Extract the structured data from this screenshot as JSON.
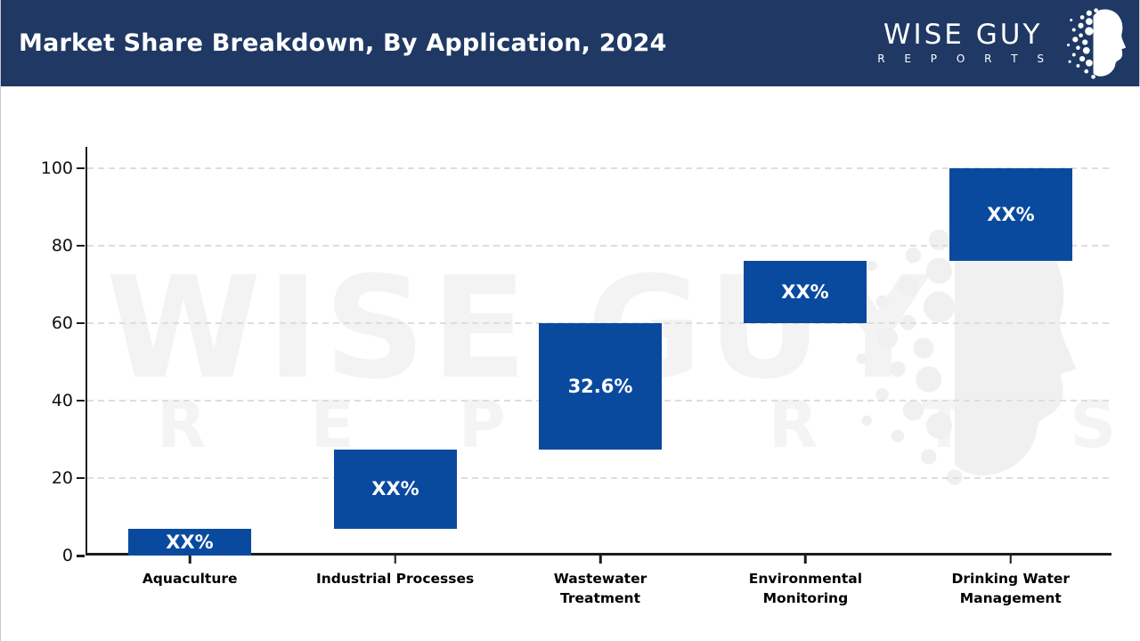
{
  "header": {
    "title": "Market Share Breakdown, By Application, 2024",
    "bg_color": "#1f3864",
    "text_color": "#ffffff",
    "logo": {
      "line1": "WISE GUY",
      "line2": "R E P O R T S"
    }
  },
  "watermark": {
    "line1": "WISE GUY",
    "line2": "R E P O R T S"
  },
  "chart_data": {
    "type": "bar",
    "subtype": "waterfall-floating-bars",
    "title": "Market Share Breakdown, By Application, 2024",
    "categories": [
      "Aquaculture",
      "Industrial Processes",
      "Wastewater Treatment",
      "Environmental Monitoring",
      "Drinking Water Management"
    ],
    "segments": [
      {
        "category": "Aquaculture",
        "start": 0,
        "end": 7,
        "value_label": "XX%"
      },
      {
        "category": "Industrial Processes",
        "start": 7,
        "end": 27.4,
        "value_label": "XX%"
      },
      {
        "category": "Wastewater Treatment",
        "start": 27.4,
        "end": 60,
        "value_label": "32.6%",
        "value": 32.6
      },
      {
        "category": "Environmental Monitoring",
        "start": 60,
        "end": 76,
        "value_label": "XX%"
      },
      {
        "category": "Drinking Water Management",
        "start": 76,
        "end": 100,
        "value_label": "XX%"
      }
    ],
    "yticks": [
      0,
      20,
      40,
      60,
      80,
      100
    ],
    "ylim": [
      0,
      105.5
    ],
    "xlabel": "",
    "ylabel": "",
    "grid": "horizontal-dashed",
    "legend": "none",
    "bar_color": "#0a4a9e",
    "bar_label_color": "#ffffff"
  }
}
